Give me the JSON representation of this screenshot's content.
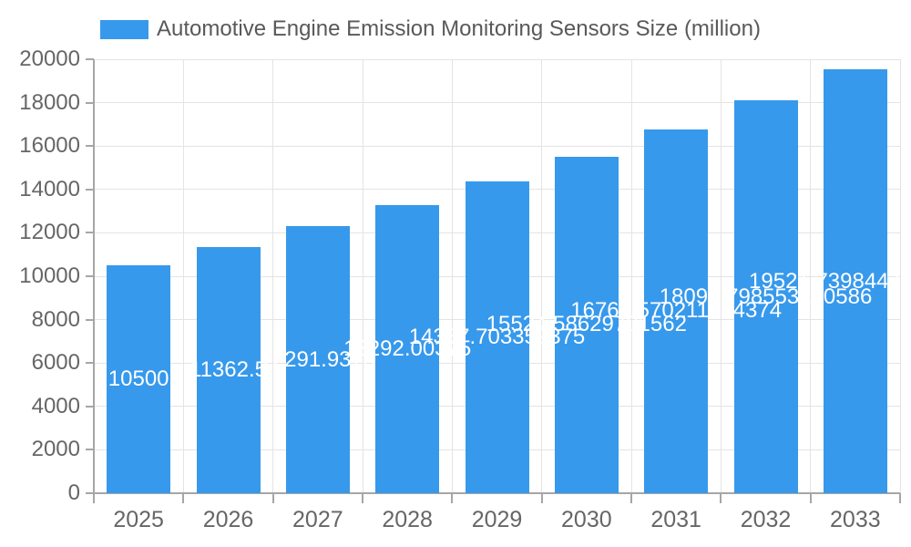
{
  "legend": {
    "label": "Automotive Engine Emission Monitoring Sensors Size (million)"
  },
  "chart_data": {
    "type": "bar",
    "title": "Automotive Engine Emission Monitoring Sensors Size (million)",
    "legend_entries": [
      "Automotive Engine Emission Monitoring Sensors Size (million)"
    ],
    "legend_position": "top-left",
    "categories": [
      "2025",
      "2026",
      "2027",
      "2028",
      "2029",
      "2030",
      "2031",
      "2032",
      "2033"
    ],
    "values": [
      10500,
      11362.5,
      12291.9375,
      13292.00375,
      14387.703359375,
      15524.58629701562,
      16768.570211304374,
      18095.798553170585,
      19521.739844710584
    ],
    "bar_labels": [
      "10500",
      "11362.5",
      "12291.9375",
      "13292.00375",
      "14387.703359375",
      "15524.58629701562",
      "16768.570211304374",
      "18095.798553170586",
      "19521.739844710586"
    ],
    "xlabel": "",
    "ylabel": "",
    "ylim": [
      0,
      20000
    ],
    "ytick_step": 2000,
    "yticks": [
      0,
      2000,
      4000,
      6000,
      8000,
      10000,
      12000,
      14000,
      16000,
      18000,
      20000
    ],
    "grid": true,
    "colors": {
      "bar": "#3799EC",
      "bar_label_text": "#FFFFFF",
      "tick_label": "#666666",
      "legend_text": "#595959",
      "gridline": "#E4E4E4",
      "axis": "#A6A6A6"
    }
  }
}
